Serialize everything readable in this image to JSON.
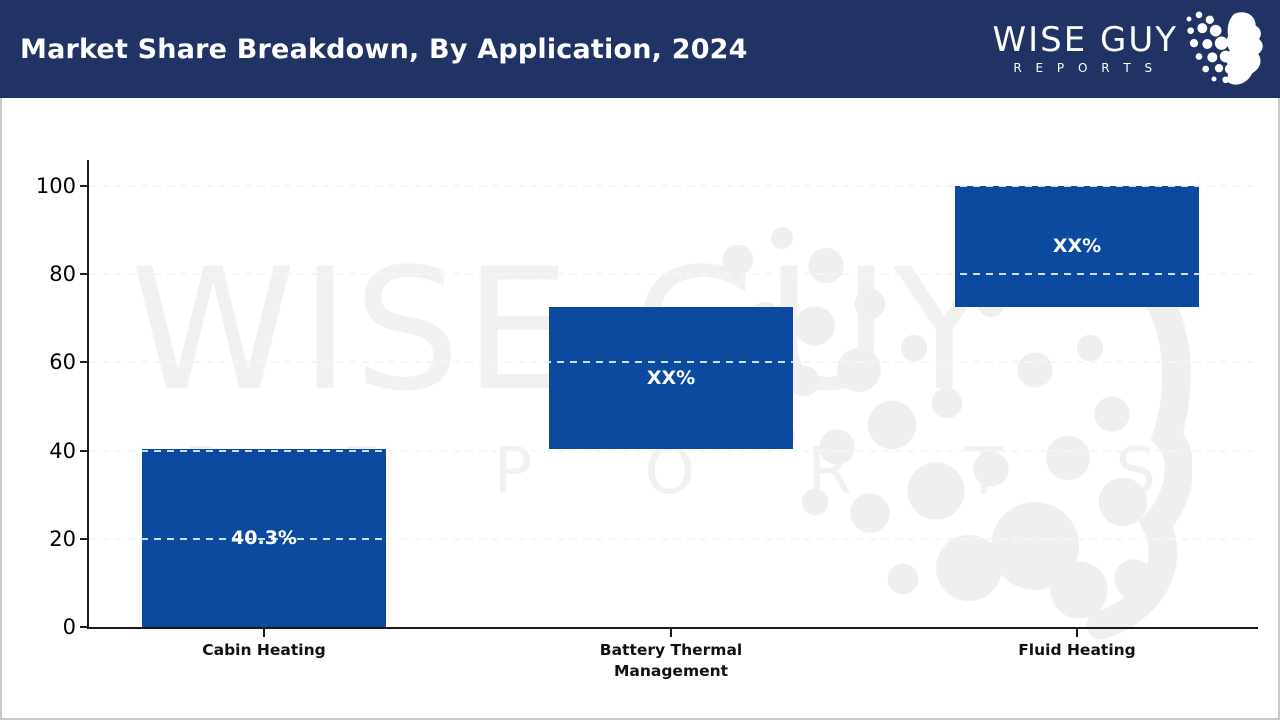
{
  "header": {
    "title": "Market Share Breakdown, By Application, 2024",
    "logo": {
      "line1": "WISE GUY",
      "line2": "R E P O R T S"
    },
    "bg_color": "#213264"
  },
  "watermark": {
    "line1": "WISE GUY",
    "line2": "R E P O R T S"
  },
  "chart_data": {
    "type": "bar",
    "subtype": "waterfall",
    "title": "Market Share Breakdown, By Application, 2024",
    "categories": [
      "Cabin Heating",
      "Battery Thermal Management",
      "Fluid Heating"
    ],
    "segments": [
      {
        "category": "Cabin Heating",
        "start": 0,
        "end": 40.3,
        "label": "40.3%"
      },
      {
        "category": "Battery Thermal Management",
        "start": 40.3,
        "end": 72.6,
        "label": "XX%"
      },
      {
        "category": "Fluid Heating",
        "start": 72.6,
        "end": 100,
        "label": "XX%"
      }
    ],
    "yticks": [
      0,
      20,
      40,
      60,
      80,
      100
    ],
    "ylim": [
      0,
      100
    ],
    "bar_color": "#0b4a9f",
    "value_label_color": "#ffffff",
    "grid": "horizontal-dashed",
    "legend": "none",
    "xlabel": "",
    "ylabel": ""
  }
}
